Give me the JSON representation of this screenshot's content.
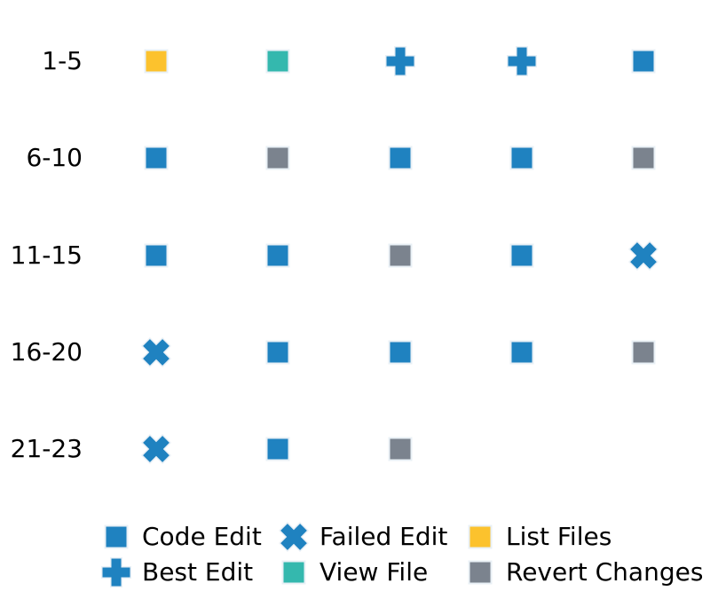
{
  "page": {
    "background": "#ffffff",
    "text_color": "#000000"
  },
  "chart_data": {
    "type": "scatter",
    "title": "",
    "xlabel": "",
    "ylabel": "",
    "grid_lines": false,
    "y_categories": [
      "1-5",
      "6-10",
      "11-15",
      "16-20",
      "21-23"
    ],
    "x_slots": [
      1,
      2,
      3,
      4,
      5
    ],
    "grid": [
      [
        "List Files",
        "View File",
        "Best Edit",
        "Best Edit",
        "Code Edit"
      ],
      [
        "Code Edit",
        "Revert Changes",
        "Code Edit",
        "Code Edit",
        "Revert Changes"
      ],
      [
        "Code Edit",
        "Code Edit",
        "Revert Changes",
        "Code Edit",
        "Failed Edit"
      ],
      [
        "Failed Edit",
        "Code Edit",
        "Code Edit",
        "Code Edit",
        "Revert Changes"
      ],
      [
        "Failed Edit",
        "Code Edit",
        "Revert Changes"
      ]
    ],
    "marker_styles": {
      "Code Edit": {
        "marker": "square",
        "color": "#1f82c0"
      },
      "Failed Edit": {
        "marker": "x",
        "color": "#1f82c0"
      },
      "List Files": {
        "marker": "square",
        "color": "#fcc22d"
      },
      "Best Edit": {
        "marker": "plus",
        "color": "#1f82c0"
      },
      "View File": {
        "marker": "square",
        "color": "#34b8ae"
      },
      "Revert Changes": {
        "marker": "square",
        "color": "#7b838e"
      }
    },
    "halo_color": "#e9f0f6",
    "legend": {
      "position": "bottom",
      "columns": 3,
      "entries": [
        {
          "label": "Code Edit",
          "marker": "square",
          "color": "#1f82c0"
        },
        {
          "label": "Failed Edit",
          "marker": "x",
          "color": "#1f82c0"
        },
        {
          "label": "List Files",
          "marker": "square",
          "color": "#fcc22d"
        },
        {
          "label": "Best Edit",
          "marker": "plus",
          "color": "#1f82c0"
        },
        {
          "label": "View File",
          "marker": "square",
          "color": "#34b8ae"
        },
        {
          "label": "Revert Changes",
          "marker": "square",
          "color": "#7b838e"
        }
      ]
    }
  }
}
